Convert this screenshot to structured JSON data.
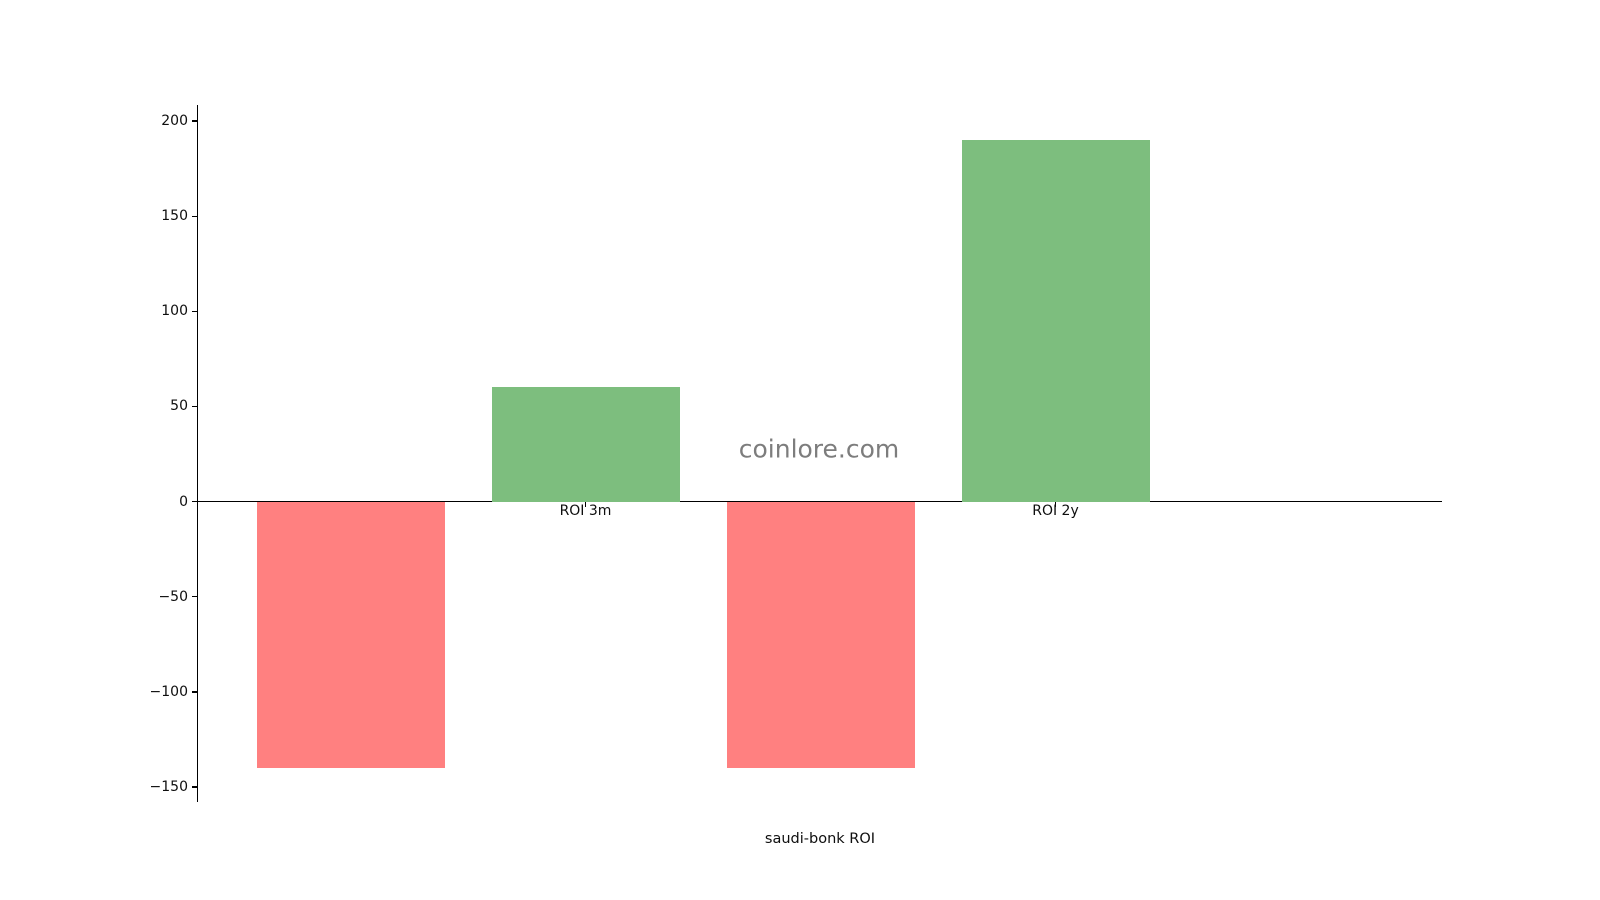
{
  "chart_data": {
    "type": "bar",
    "title": "saudi-bonk ROI",
    "watermark": "coinlore.com",
    "categories": [
      "",
      "ROI 3m",
      "",
      "ROI 2y"
    ],
    "values": [
      -140,
      60,
      -140,
      190
    ],
    "bar_colors": {
      "positive": "#7dbe7e",
      "negative": "#ff8080"
    },
    "yticks": [
      200,
      150,
      100,
      50,
      0,
      -50,
      -100,
      -150
    ],
    "ytick_labels": [
      "200",
      "150",
      "100",
      "50",
      "0",
      "−50",
      "−100",
      "−150"
    ],
    "ylim": [
      -150,
      200
    ],
    "xlabel": "saudi-bonk ROI",
    "ylabel": "",
    "grid": false,
    "legend": "none",
    "axis_color": "#000000",
    "watermark_color": "#7d7d7d"
  }
}
